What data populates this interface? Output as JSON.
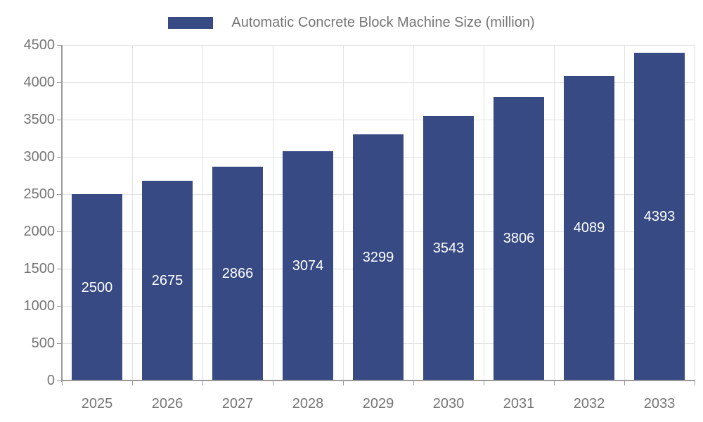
{
  "legend": {
    "label": "Automatic Concrete Block Machine Size (million)",
    "swatch_color": "#374a84"
  },
  "chart_data": {
    "type": "bar",
    "title": "Automatic Concrete Block Machine Size (million)",
    "categories": [
      "2025",
      "2026",
      "2027",
      "2028",
      "2029",
      "2030",
      "2031",
      "2032",
      "2033"
    ],
    "values": [
      2500,
      2675,
      2866,
      3074,
      3299,
      3543,
      3806,
      4089,
      4393
    ],
    "xlabel": "",
    "ylabel": "",
    "ylim": [
      0,
      4500
    ],
    "yticks": [
      0,
      500,
      1000,
      1500,
      2000,
      2500,
      3000,
      3500,
      4000,
      4500
    ],
    "grid": true,
    "legend_position": "top",
    "bar_color": "#374a84",
    "bar_label_color": "#ffffff",
    "axis_text_color": "#757575",
    "gridline_color": "#e2e2e2",
    "axis_line_color": "#9a9a9a",
    "background_color": "#ffffff"
  }
}
